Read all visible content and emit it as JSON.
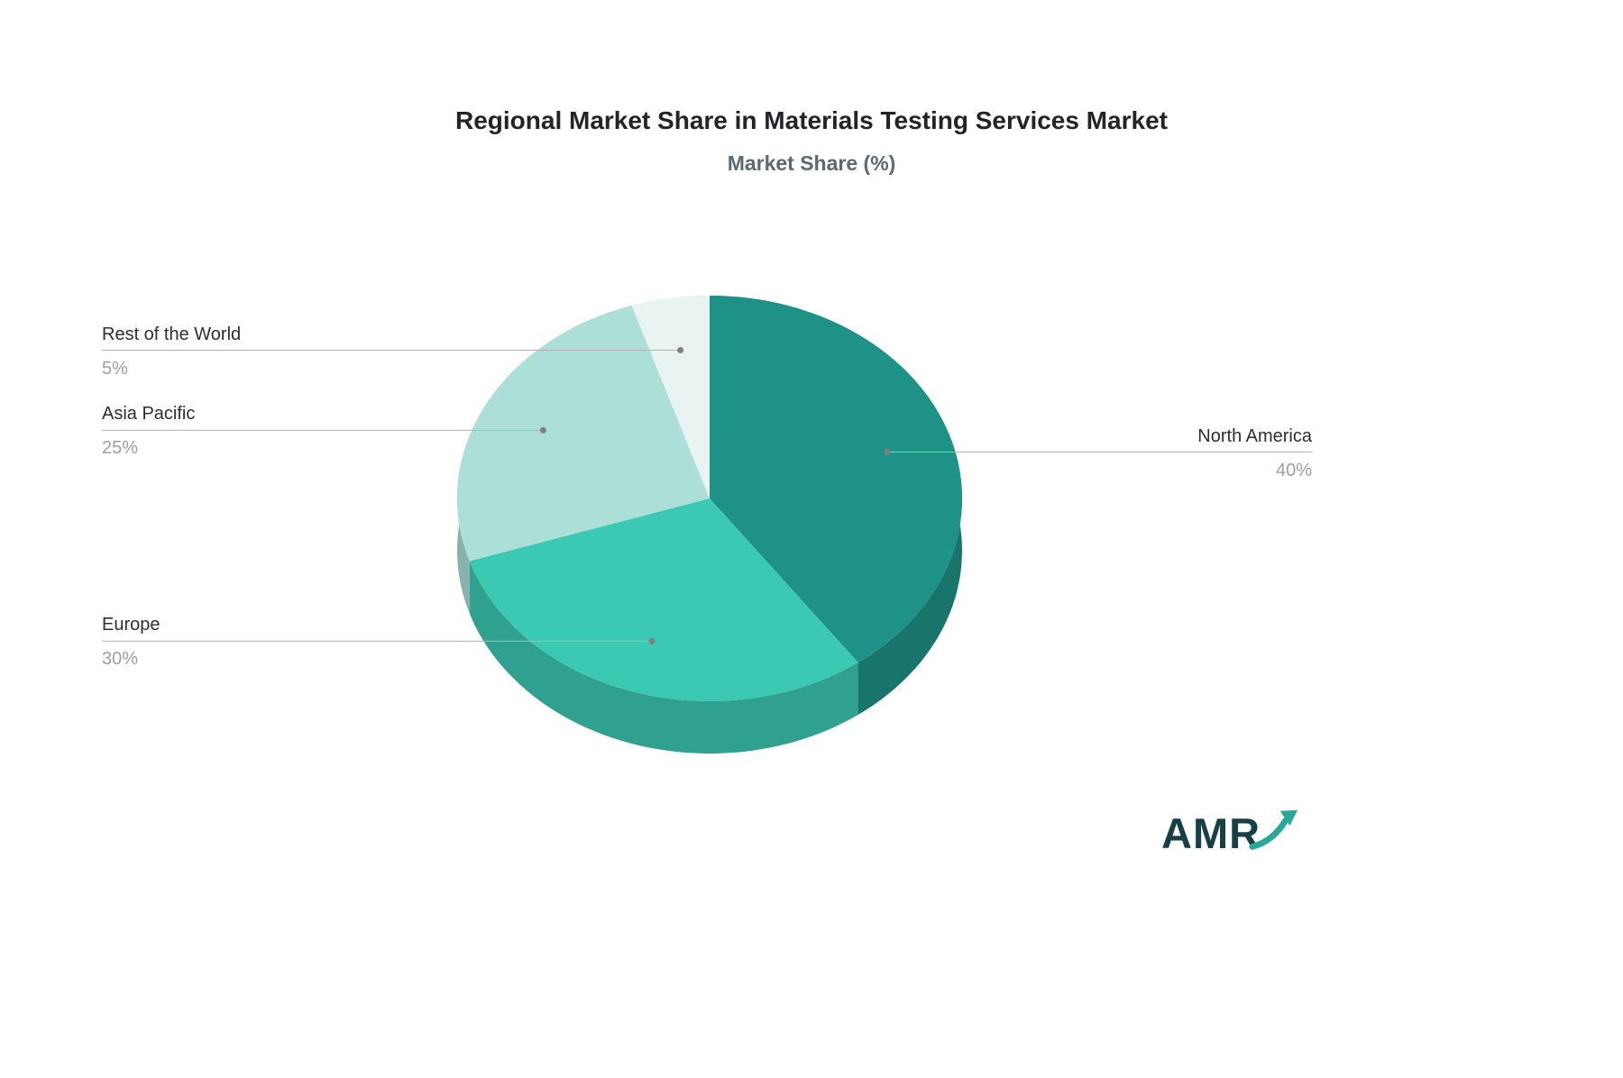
{
  "chart_data": {
    "type": "pie",
    "title": "Regional Market Share in Materials Testing Services Market",
    "subtitle": "Market Share (%)",
    "unit": "%",
    "style_3d": true,
    "legend_position": "none",
    "label_style": "leader-lines",
    "categories": [
      "North America",
      "Europe",
      "Asia Pacific",
      "Rest of the World"
    ],
    "values": [
      40,
      30,
      25,
      5
    ],
    "slices": [
      {
        "label": "North America",
        "value": 40,
        "pct_label": "40%",
        "color": "#1f9287",
        "label_side": "right"
      },
      {
        "label": "Europe",
        "value": 30,
        "pct_label": "30%",
        "color": "#3cc9b4",
        "label_side": "left"
      },
      {
        "label": "Asia Pacific",
        "value": 25,
        "pct_label": "25%",
        "color": "#abdfd8",
        "label_side": "left"
      },
      {
        "label": "Rest of the World",
        "value": 5,
        "pct_label": "5%",
        "color": "#e9f4f2",
        "label_side": "left"
      }
    ],
    "style": {
      "leader_line_color": "#b3b3b3",
      "anchor_dot_color": "#808080",
      "label_text_color": "#2e2e2e",
      "pct_text_color": "#9aa0a6",
      "title_color": "#212529",
      "subtitle_color": "#5c6873",
      "side_shade_factor": 0.8
    }
  },
  "logo": {
    "text": "AMR",
    "text_color": "#173f46",
    "arrow_color": "#2aa79b"
  }
}
